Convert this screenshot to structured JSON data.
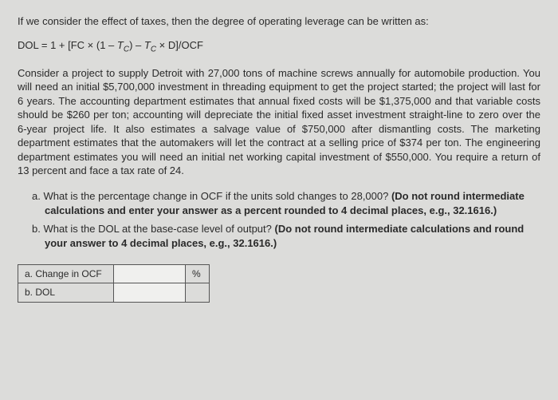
{
  "intro": "If we consider the effect of taxes, then the degree of operating leverage can be written as:",
  "formula": {
    "prefix": "DOL = 1 + [FC × (1 – ",
    "t1": "T",
    "t1sub": "C",
    "paren": ") – ",
    "t2": "T",
    "t2sub": "C",
    "suffix": " × D]/OCF"
  },
  "body": "Consider a project to supply Detroit with 27,000 tons of machine screws annually for automobile production. You will need an initial $5,700,000 investment in threading equipment to get the project started; the project will last for 6 years. The accounting department estimates that annual fixed costs will be $1,375,000 and that variable costs should be $260 per ton; accounting will depreciate the initial fixed asset investment straight-line to zero over the 6-year project life. It also estimates a salvage value of $750,000 after dismantling costs. The marketing department estimates that the automakers will let the contract at a selling price of $374 per ton. The engineering department estimates you will need an initial net working capital investment of $550,000. You require a return of 13 percent and face a tax rate of 24.",
  "qa": {
    "label": "a.",
    "text": "What is the percentage change in OCF if the units sold changes to 28,000? ",
    "bold": "(Do not round intermediate calculations and enter your answer as a percent rounded to 4 decimal places, e.g., 32.1616.)"
  },
  "qb": {
    "label": "b.",
    "text": "What is the DOL at the base-case level of output? ",
    "bold": "(Do not round intermediate calculations and round your answer to 4 decimal places, e.g., 32.1616.)"
  },
  "table": {
    "rowA": {
      "label": "a. Change in OCF",
      "unit": "%"
    },
    "rowB": {
      "label": "b. DOL"
    }
  }
}
